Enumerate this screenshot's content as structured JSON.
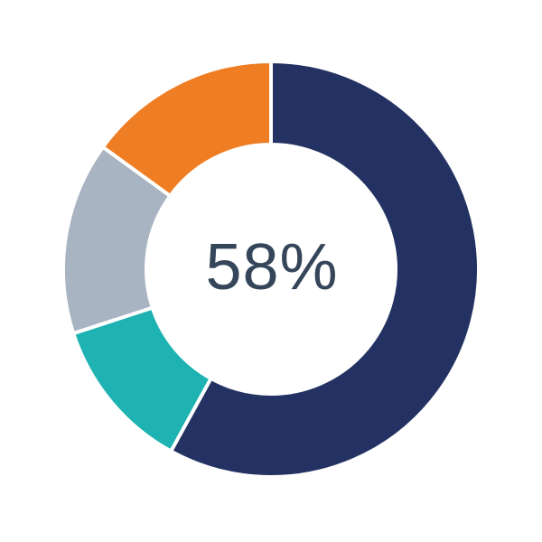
{
  "page": {
    "background_color": "#ffffff"
  },
  "chart_data": {
    "type": "pie",
    "subtype": "donut",
    "title": "",
    "center_label": "58%",
    "center_label_color": "#36465A",
    "direction": "clockwise",
    "start_angle_deg": 0,
    "inner_radius_ratio": 0.6,
    "segment_gap_color": "#ffffff",
    "segments": [
      {
        "name": "navy",
        "value": 58,
        "color": "#233262"
      },
      {
        "name": "teal",
        "value": 12,
        "color": "#1EB3B2"
      },
      {
        "name": "gray",
        "value": 15,
        "color": "#A9B4C2"
      },
      {
        "name": "orange",
        "value": 15,
        "color": "#EF7D23"
      }
    ]
  }
}
